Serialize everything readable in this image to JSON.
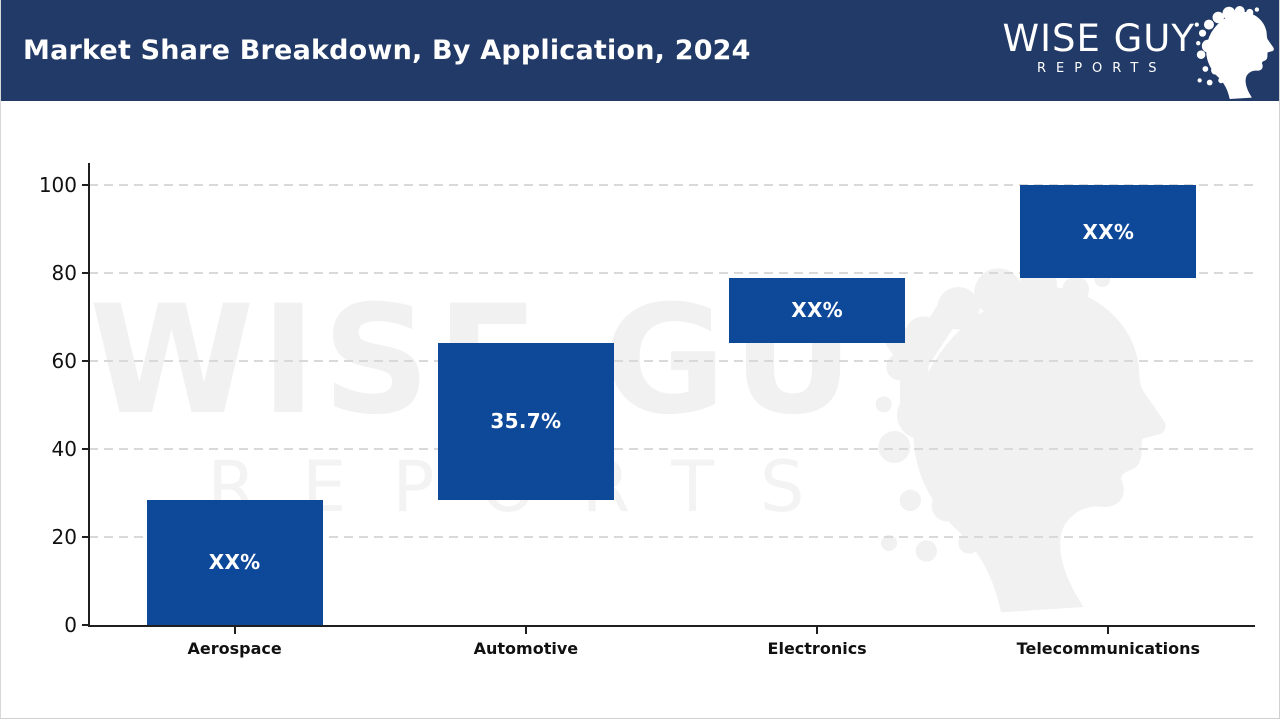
{
  "header": {
    "title": "Market Share Breakdown, By Application, 2024",
    "logo": {
      "name": "WISE GUY",
      "sub": "REPORTS",
      "face_icon": "dotted-head-profile-icon"
    }
  },
  "watermark": {
    "name": "WISE GUY",
    "sub": "REPORTS",
    "face_icon": "dotted-head-profile-icon"
  },
  "colors": {
    "header_bg": "#223a67",
    "bar": "#0d4899",
    "grid": "#d9d9d9",
    "axis": "#1f1f1f",
    "watermark": "#f1f1f1",
    "border": "#d0d0d0"
  },
  "chart_data": {
    "type": "bar",
    "subtype": "floating-waterfall",
    "title": "Market Share Breakdown, By Application, 2024",
    "xlabel": "",
    "ylabel": "",
    "categories": [
      "Aerospace",
      "Automotive",
      "Electronics",
      "Telecommunications"
    ],
    "series": [
      {
        "name": "Market share (%)",
        "segments": [
          {
            "category": "Aerospace",
            "start": 0,
            "end": 28.5,
            "label": "XX%"
          },
          {
            "category": "Automotive",
            "start": 28.5,
            "end": 64.2,
            "label": "35.7%"
          },
          {
            "category": "Electronics",
            "start": 64.2,
            "end": 78.8,
            "label": "XX%"
          },
          {
            "category": "Telecommunications",
            "start": 78.8,
            "end": 100,
            "label": "XX%"
          }
        ]
      }
    ],
    "ylim": [
      0,
      100
    ],
    "yticks": [
      0,
      20,
      40,
      60,
      80,
      100
    ],
    "grid": "horizontal-dashed",
    "legend": "none",
    "bar_color": "#0d4899"
  }
}
